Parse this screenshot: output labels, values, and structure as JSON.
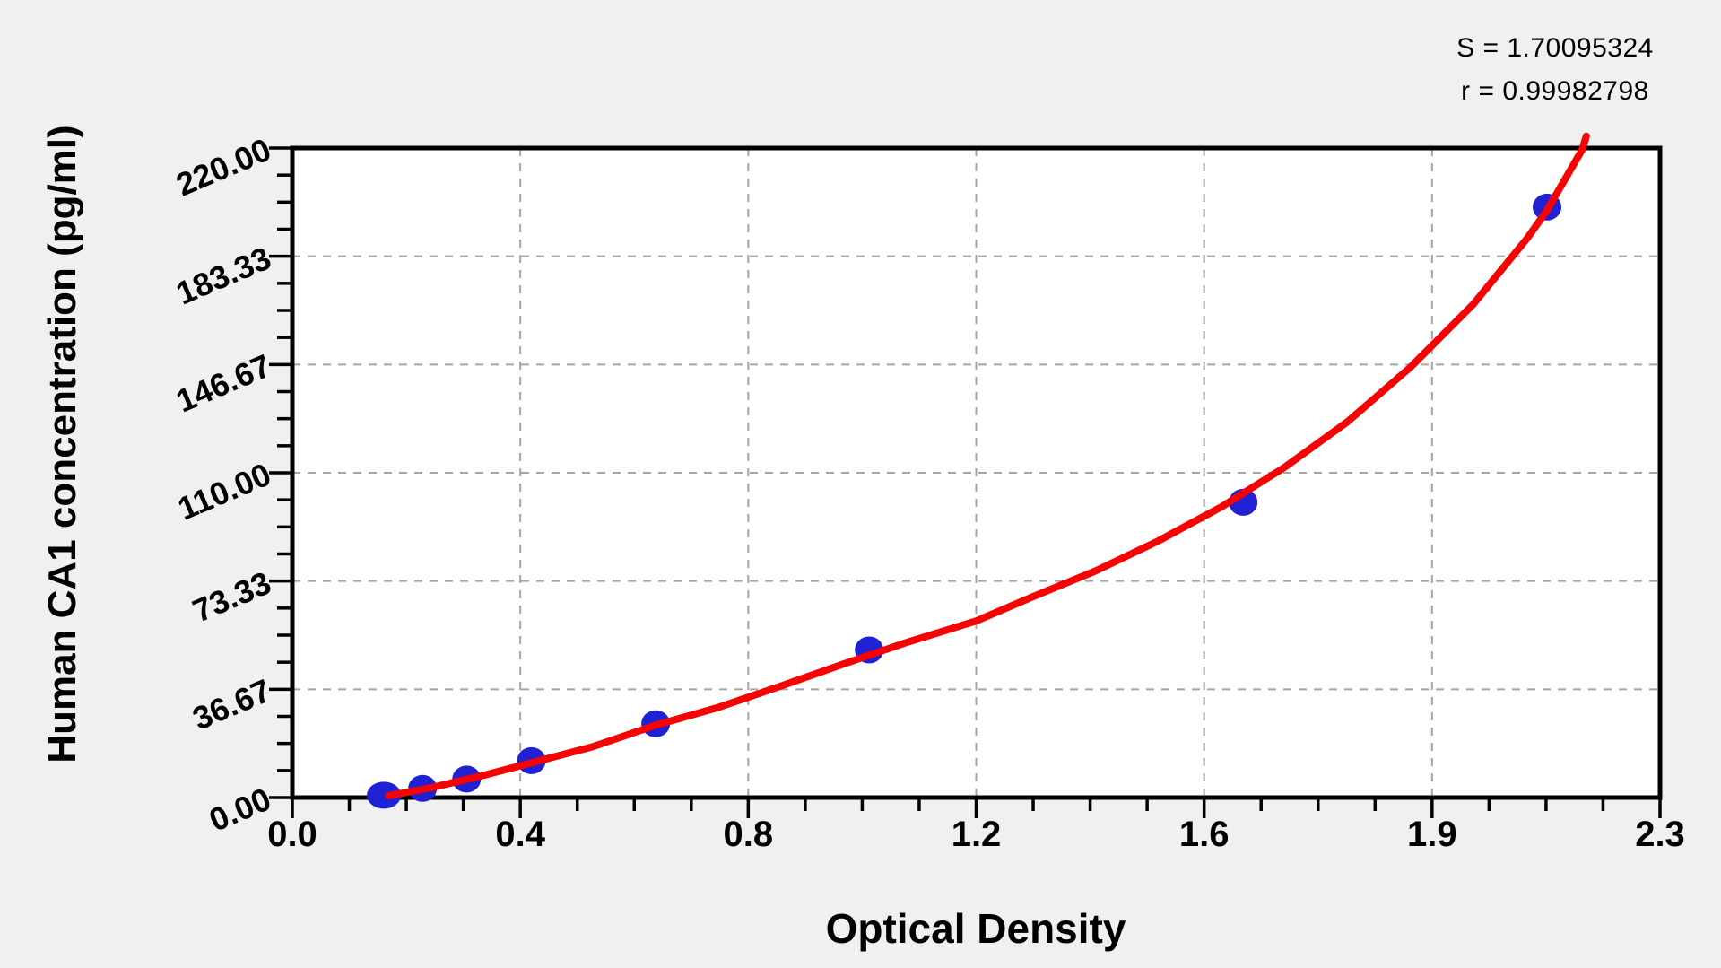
{
  "figure": {
    "bg_color": "#f0f0f0",
    "plot_bg_color": "#ffffff",
    "frame_color": "#000000",
    "grid_color": "#a5a5a5",
    "curve_color": "#f60303",
    "point_color": "#2121d4",
    "stats_line1": "S = 1.70095324",
    "stats_line2": "r = 0.99982798",
    "x_title": "Optical Density",
    "y_title": "Human CA1 concentration (pg/ml)"
  },
  "chart_data": {
    "type": "scatter",
    "title": "",
    "xlabel": "Optical Density",
    "ylabel": "Human CA1 concentration (pg/ml)",
    "xlim": [
      0,
      2.3
    ],
    "ylim": [
      0,
      220
    ],
    "x_tick_labels": [
      "0.0",
      "0.4",
      "0.8",
      "1.2",
      "1.6",
      "1.9",
      "2.3"
    ],
    "y_tick_labels": [
      "0.00",
      "36.67",
      "73.33",
      "110.00",
      "146.67",
      "183.33",
      "220.00"
    ],
    "minor_ticks_per_major_interval": 3,
    "grid": "dashed gray at major ticks, plot framed on all four sides",
    "legend_position": "none",
    "S": "1.70095324",
    "r": "0.99982798",
    "series": [
      {
        "name": "standard-points",
        "type": "scatter",
        "marker": "filled-circle",
        "points_od_conc": [
          [
            0.154,
            0.8
          ],
          [
            0.219,
            3.1
          ],
          [
            0.293,
            6.25
          ],
          [
            0.402,
            12.5
          ],
          [
            0.611,
            25
          ],
          [
            0.97,
            50
          ],
          [
            1.599,
            100
          ],
          [
            2.11,
            200
          ]
        ]
      },
      {
        "name": "fitted-curve",
        "type": "line",
        "points_od_conc": [
          [
            0.162,
            0.6
          ],
          [
            0.233,
            3.3
          ],
          [
            0.323,
            7.6
          ],
          [
            0.414,
            12.4
          ],
          [
            0.505,
            17.2
          ],
          [
            0.611,
            24.5
          ],
          [
            0.716,
            30.5
          ],
          [
            0.822,
            37.8
          ],
          [
            0.928,
            45.3
          ],
          [
            1.034,
            52.6
          ],
          [
            1.15,
            59.8
          ],
          [
            1.245,
            68.0
          ],
          [
            1.351,
            76.8
          ],
          [
            1.457,
            87.0
          ],
          [
            1.563,
            98.5
          ],
          [
            1.668,
            111.8
          ],
          [
            1.774,
            127.2
          ],
          [
            1.88,
            145.7
          ],
          [
            1.986,
            167.1
          ],
          [
            2.077,
            189.5
          ],
          [
            2.11,
            198.9
          ],
          [
            2.169,
            219.4
          ],
          [
            2.176,
            224.0
          ]
        ]
      }
    ]
  }
}
